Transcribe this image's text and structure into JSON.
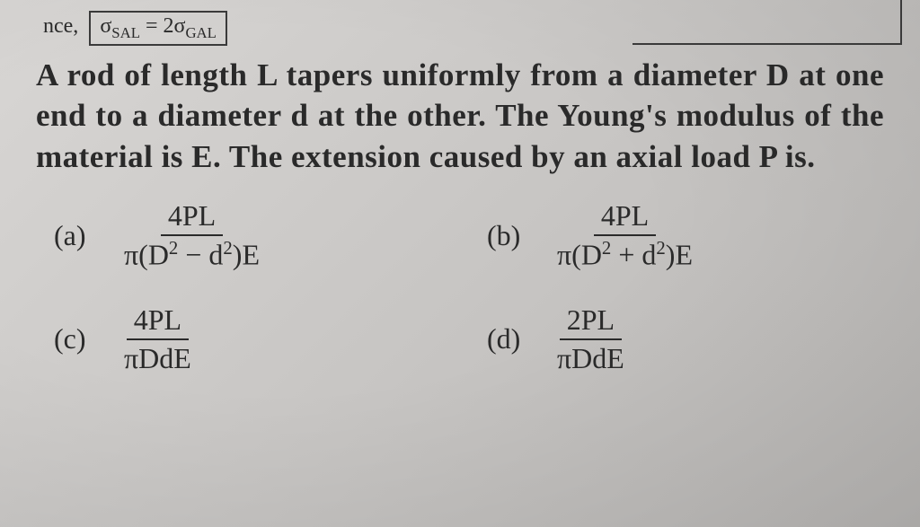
{
  "topFormula": {
    "prefix": "σ",
    "prefixSub": "SAL",
    "equals": " = 2σ",
    "suffixSub": "GAL",
    "fontSize": 24,
    "color": "#2a2a2a"
  },
  "question": {
    "text": "A rod of length L tapers uniformly from a diameter D at one end to a diameter d at the other. The Young's modulus of the material is E. The extension caused by an axial load P is.",
    "fontSize": 35,
    "fontWeight": "bold",
    "color": "#2a2a2a"
  },
  "options": [
    {
      "label": "(a)",
      "numeratorParts": [
        "4PL"
      ],
      "denominatorParts": [
        "π(D",
        "2",
        " − d",
        "2",
        ")E"
      ]
    },
    {
      "label": "(b)",
      "numeratorParts": [
        "4PL"
      ],
      "denominatorParts": [
        "π(D",
        "2",
        " + d",
        "2",
        ")E"
      ]
    },
    {
      "label": "(c)",
      "numeratorParts": [
        "4PL"
      ],
      "denominatorParts": [
        "πDdE"
      ]
    },
    {
      "label": "(d)",
      "numeratorParts": [
        "2PL"
      ],
      "denominatorParts": [
        "πDdE"
      ]
    }
  ],
  "style": {
    "backgroundColor": "#c8c6c4",
    "textColor": "#2a2a2a",
    "fractionBarColor": "#2a2a2a",
    "optionFontSize": 32,
    "questionFontSize": 35
  }
}
